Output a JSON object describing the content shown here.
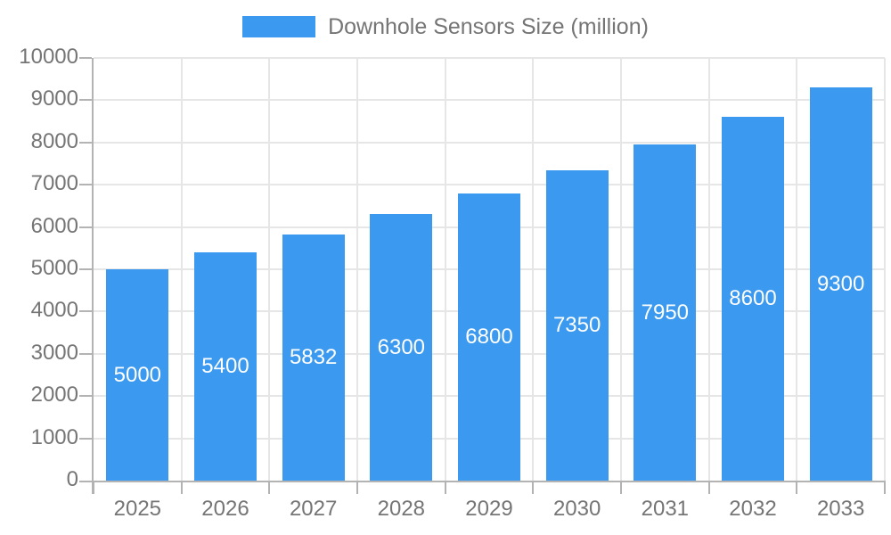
{
  "chart_data": {
    "type": "bar",
    "title": "Downhole Sensors Size (million)",
    "categories": [
      "2025",
      "2026",
      "2027",
      "2028",
      "2029",
      "2030",
      "2031",
      "2032",
      "2033"
    ],
    "series": [
      {
        "name": "Downhole Sensors Size (million)",
        "values": [
          5000,
          5400,
          5832,
          6300,
          6800,
          7350,
          7950,
          8600,
          9300
        ]
      }
    ],
    "value_labels": [
      "5000",
      "5400",
      "5832",
      "6300",
      "6800",
      "7350",
      "7950",
      "8600",
      "9300"
    ],
    "xlabel": "",
    "ylabel": "",
    "ylim": [
      0,
      10000
    ],
    "yticks": [
      0,
      1000,
      2000,
      3000,
      4000,
      5000,
      6000,
      7000,
      8000,
      9000,
      10000
    ],
    "grid": true,
    "legend_position": "top",
    "value_labels_position": "inside-center"
  },
  "colors": {
    "bar": "#3B99EF",
    "value_label": "#FFFFFF",
    "gridline": "#E6E6E6",
    "axis": "#B3B3B3",
    "text": "#757575",
    "background": "#FFFFFF"
  }
}
